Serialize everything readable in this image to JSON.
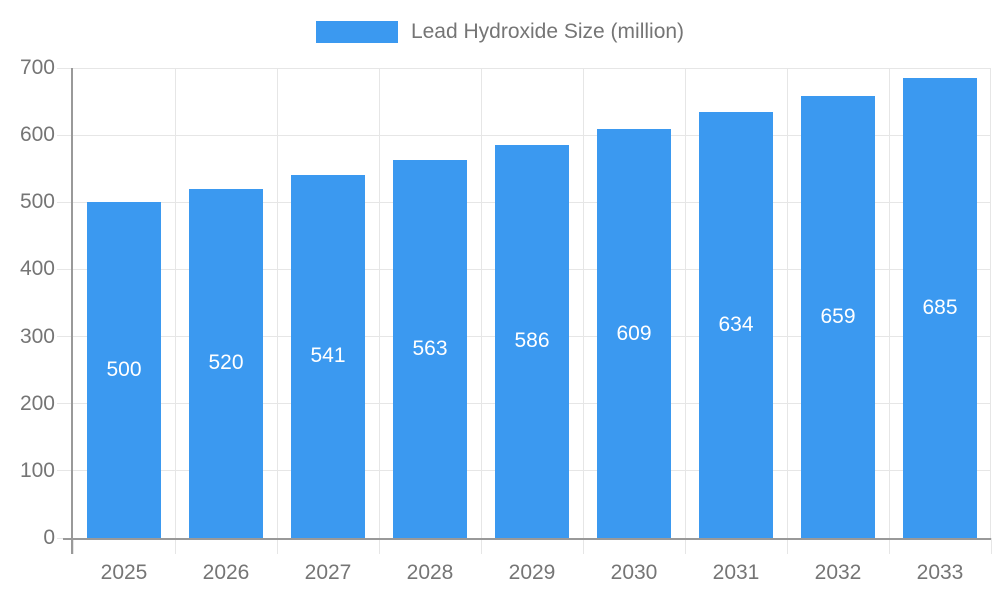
{
  "chart_data": {
    "type": "bar",
    "title": "Lead Hydroxide Size (million)",
    "legend": {
      "label": "Lead Hydroxide Size (million)",
      "position": "top"
    },
    "categories": [
      "2025",
      "2026",
      "2027",
      "2028",
      "2029",
      "2030",
      "2031",
      "2032",
      "2033"
    ],
    "series": [
      {
        "name": "Lead Hydroxide Size (million)",
        "values": [
          500,
          520,
          541,
          563,
          586,
          609,
          634,
          659,
          685
        ]
      }
    ],
    "xlabel": "",
    "ylabel": "",
    "ylim": [
      0,
      700
    ],
    "yticks": [
      0,
      100,
      200,
      300,
      400,
      500,
      600,
      700
    ],
    "grid": true,
    "bar_value_labels": true,
    "colors": {
      "bar": "#3B99F0",
      "grid": "#E6E6E6",
      "axis": "#999999",
      "text": "#757575",
      "bar_label": "#FFFFFF",
      "background": "#FFFFFF"
    }
  }
}
